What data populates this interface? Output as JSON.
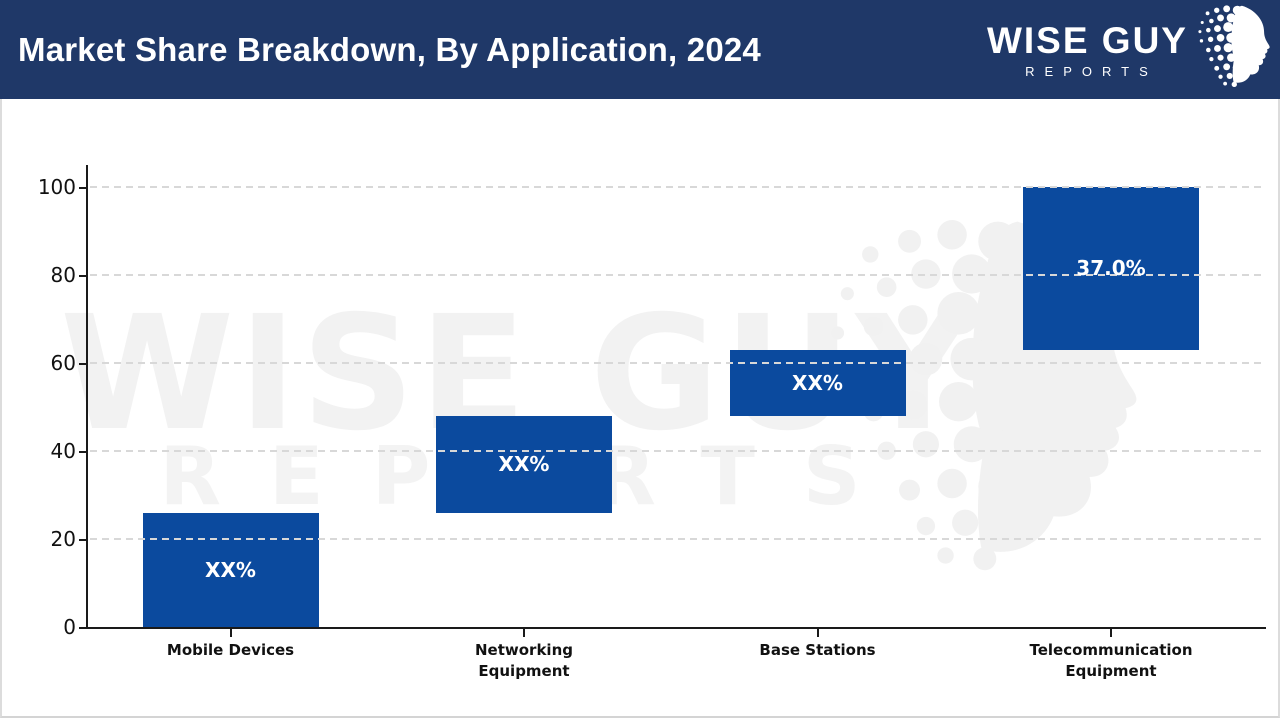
{
  "header": {
    "title": "Market Share Breakdown, By Application, 2024",
    "bg_color": "#1f3868",
    "logo": {
      "name": "WISE GUY",
      "tagline": "REPORTS"
    }
  },
  "watermark": {
    "line1": "WISE GUY",
    "line2": "REPORTS"
  },
  "chart_data": {
    "type": "bar",
    "variant": "waterfall",
    "title": "Market Share Breakdown, By Application, 2024",
    "categories": [
      "Mobile Devices",
      "Networking Equipment",
      "Base Stations",
      "Telecommunication Equipment"
    ],
    "category_label_lines": [
      [
        "Mobile Devices"
      ],
      [
        "Networking",
        "Equipment"
      ],
      [
        "Base Stations"
      ],
      [
        "Telecommunication",
        "Equipment"
      ]
    ],
    "segments": [
      {
        "category": "Mobile Devices",
        "start": 0,
        "end": 26,
        "label": "XX%"
      },
      {
        "category": "Networking Equipment",
        "start": 26,
        "end": 48,
        "label": "XX%"
      },
      {
        "category": "Base Stations",
        "start": 48,
        "end": 63,
        "label": "XX%"
      },
      {
        "category": "Telecommunication Equipment",
        "start": 63,
        "end": 100,
        "label": "37.0%"
      }
    ],
    "yticks": [
      0,
      20,
      40,
      60,
      80,
      100
    ],
    "ylim": [
      0,
      105
    ],
    "bar_color": "#0b4a9e",
    "bar_label_color": "#ffffff",
    "axis_color": "#1a1a1a",
    "tick_label_color": "#111111",
    "grid": {
      "axis": "y",
      "style": "dashed",
      "color": "#d8d8d8",
      "drawn_over_bars": true
    },
    "legend": null,
    "xlabel": "",
    "ylabel": ""
  }
}
